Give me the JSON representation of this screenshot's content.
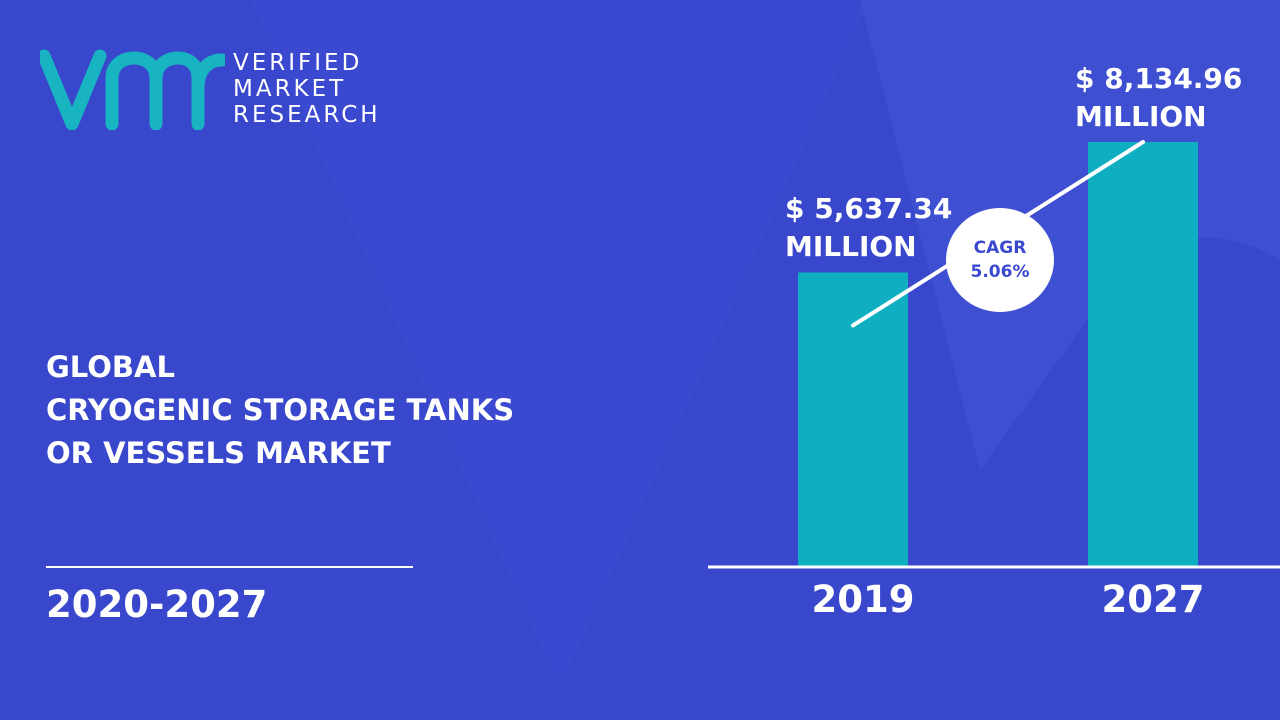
{
  "brand": {
    "line1": "VERIFIED",
    "line2": "MARKET",
    "line3": "RESEARCH",
    "logo_mark": "vmr"
  },
  "title": {
    "line1": "GLOBAL",
    "line2": "CRYOGENIC STORAGE TANKS",
    "line3": "OR VESSELS MARKET"
  },
  "period": "2020-2027",
  "cagr": {
    "label": "CAGR",
    "value": "5.06%"
  },
  "colors": {
    "background": "#3a49cf",
    "bar": "#0fafc1",
    "text": "#ffffff",
    "logo": "#18b4c2"
  },
  "chart_data": {
    "type": "bar",
    "categories": [
      "2019",
      "2027"
    ],
    "values": [
      5637.34,
      8134.96
    ],
    "value_labels": [
      {
        "amount": "$ 5,637.34",
        "unit": "MILLION"
      },
      {
        "amount": "$ 8,134.96",
        "unit": "MILLION"
      }
    ],
    "title": "",
    "xlabel": "",
    "ylabel": "",
    "grid": false,
    "legend": "none"
  }
}
